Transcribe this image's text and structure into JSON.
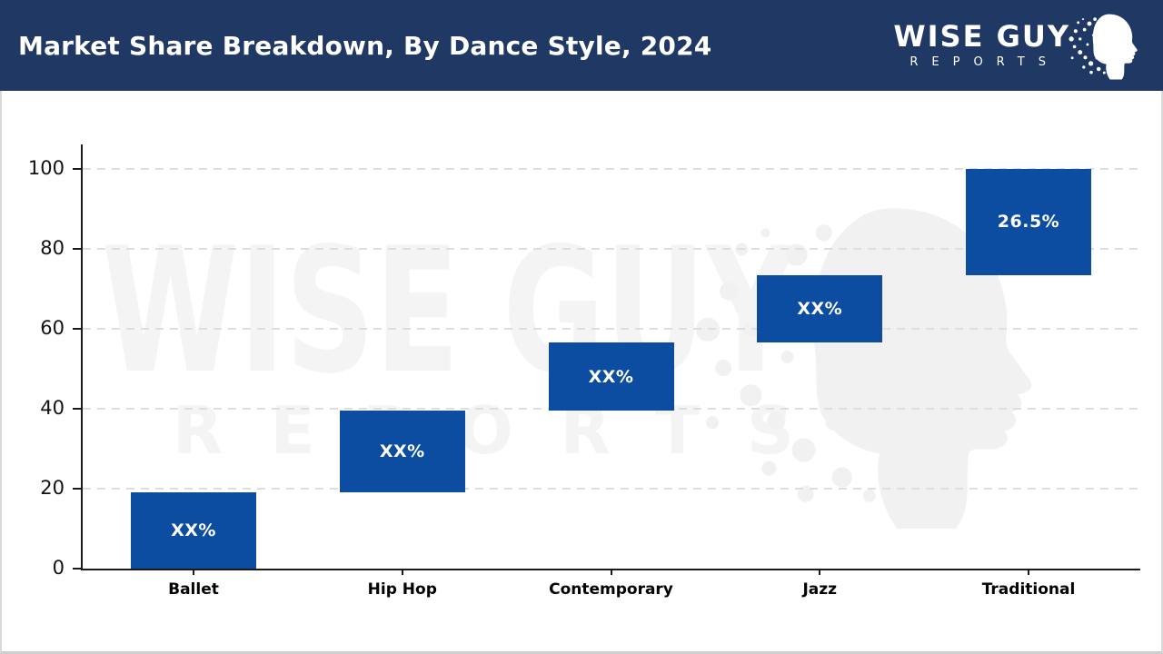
{
  "header": {
    "title": "Market Share Breakdown, By Dance Style, 2024",
    "logo": {
      "line1": "WISE GUY",
      "line2": "REPORTS"
    }
  },
  "watermark": {
    "line1": "WISE GUY",
    "line2": "REPORTS"
  },
  "chart_data": {
    "type": "bar",
    "subtype": "waterfall",
    "title": "Market Share Breakdown, By Dance Style, 2024",
    "categories": [
      "Ballet",
      "Hip Hop",
      "Contemporary",
      "Jazz",
      "Traditional"
    ],
    "bars": [
      {
        "category": "Ballet",
        "start": 0,
        "end": 19,
        "label": "XX%"
      },
      {
        "category": "Hip Hop",
        "start": 19,
        "end": 39.5,
        "label": "XX%"
      },
      {
        "category": "Contemporary",
        "start": 39.5,
        "end": 56.5,
        "label": "XX%"
      },
      {
        "category": "Jazz",
        "start": 56.5,
        "end": 73.5,
        "label": "XX%"
      },
      {
        "category": "Traditional",
        "start": 73.5,
        "end": 100,
        "label": "26.5%"
      }
    ],
    "ylim": [
      0,
      100
    ],
    "yticks": [
      0,
      20,
      40,
      60,
      80,
      100
    ],
    "xlabel": "",
    "ylabel": "",
    "grid": "horizontal dashed",
    "legend": "none",
    "bar_color": "#0c4da2",
    "bar_label_color": "#ffffff"
  },
  "colors": {
    "header_bg": "#1f3864",
    "bar": "#0c4da2",
    "watermark": "#f4f4f4",
    "gridline": "#dedede",
    "axis": "#1a1a1a",
    "page_border": "#d9d9d9",
    "background": "#ffffff"
  }
}
